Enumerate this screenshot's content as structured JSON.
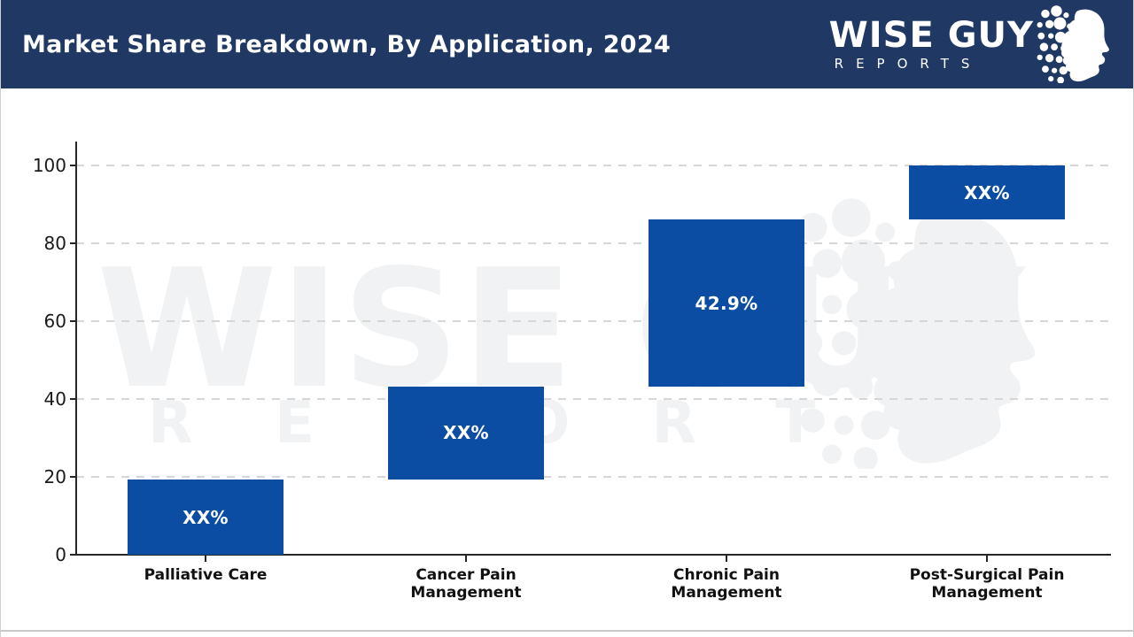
{
  "header": {
    "title": "Market Share Breakdown, By Application, 2024",
    "logo": {
      "line1": "WISE GUY",
      "line2": "REPORTS"
    }
  },
  "watermark": {
    "line1": "WISE GUY",
    "line2": "REPORTS"
  },
  "chart_data": {
    "type": "bar",
    "subtype": "waterfall-stacked-segments",
    "title": "Market Share Breakdown, By Application, 2024",
    "categories": [
      "Palliative Care",
      "Cancer Pain Management",
      "Chronic Pain Management",
      "Post-Surgical Pain Management"
    ],
    "category_lines": [
      [
        "Palliative Care"
      ],
      [
        "Cancer Pain",
        "Management"
      ],
      [
        "Chronic Pain",
        "Management"
      ],
      [
        "Post-Surgical Pain",
        "Management"
      ]
    ],
    "bar_starts": [
      0,
      19.3,
      43.2,
      86.1
    ],
    "values": [
      19.3,
      23.9,
      42.9,
      13.9
    ],
    "bar_labels": [
      "XX%",
      "XX%",
      "42.9%",
      "XX%"
    ],
    "xlabel": "",
    "ylabel": "",
    "ylim": [
      0,
      100
    ],
    "yticks": [
      0,
      20,
      40,
      60,
      80,
      100
    ],
    "grid": "horizontal-dashed",
    "legend": "none"
  },
  "colors": {
    "header_bg": "#203864",
    "bar": "#0b4da2",
    "bar_label": "#ffffff",
    "grid": "#d6d6d6",
    "axis": "#262626",
    "watermark": "#f1f2f4",
    "page_border": "#cccccc"
  }
}
